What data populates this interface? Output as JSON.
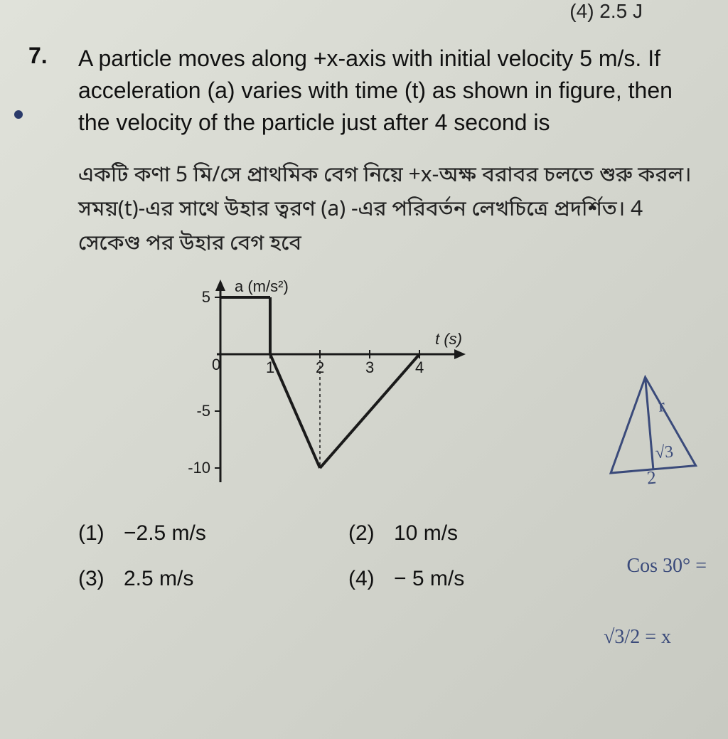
{
  "partial_top": "(4)  2.5 J",
  "question": {
    "number": "7.",
    "text_en": "A particle moves along +x-axis with initial velocity 5 m/s. If acceleration (a) varies with time (t) as shown in figure, then the velocity of the particle just after 4 second is",
    "text_bn": "একটি কণা 5 মি/সে প্রাথমিক বেগ নিয়ে +x-অক্ষ বরাবর চলতে শুরু করল। সময়(t)-এর সাথে উহার ত্বরণ (a) -এর পরিবর্তন লেখচিত্রে প্রদর্শিত। 4 সেকেণ্ড পর উহার বেগ হবে"
  },
  "chart": {
    "type": "line",
    "xlabel": "t (s)",
    "ylabel": "a (m/s²)",
    "xlim": [
      0,
      4.5
    ],
    "ylim": [
      -11,
      6
    ],
    "xtick_labels": [
      "0",
      "1",
      "2",
      "3",
      "4"
    ],
    "xtick_positions": [
      0,
      1,
      2,
      3,
      4
    ],
    "ytick_labels": [
      "5",
      "-5",
      "-10"
    ],
    "ytick_positions": [
      5,
      -5,
      -10
    ],
    "segments": [
      {
        "from": [
          0,
          5
        ],
        "to": [
          1,
          5
        ]
      },
      {
        "from": [
          1,
          5
        ],
        "to": [
          1,
          0
        ]
      },
      {
        "from": [
          1,
          0
        ],
        "to": [
          2,
          -10
        ]
      },
      {
        "from": [
          2,
          -10
        ],
        "to": [
          4,
          0
        ]
      }
    ],
    "label_fontsize": 22,
    "line_color": "#1a1a1a",
    "line_width": 4,
    "axis_color": "#1a1a1a",
    "axis_width": 3,
    "background_color": "transparent",
    "arrow_size": 12
  },
  "handwriting": {
    "triangle_labels": [
      "r",
      "√3",
      "2"
    ],
    "cos_eq": "Cos 30° =",
    "frac_eq": "√3/2 = x"
  },
  "options": [
    {
      "num": "(1)",
      "text": "−2.5 m/s"
    },
    {
      "num": "(2)",
      "text": "10 m/s"
    },
    {
      "num": "(3)",
      "text": "2.5 m/s"
    },
    {
      "num": "(4)",
      "text": "− 5 m/s"
    }
  ]
}
